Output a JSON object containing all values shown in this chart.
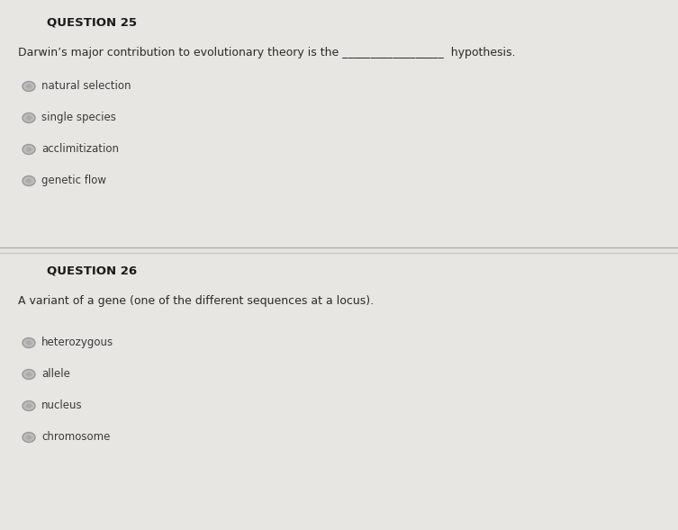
{
  "bg_color": "#e8e6e3",
  "q25_label": "QUESTION 25",
  "q25_text": "Darwin’s major contribution to evolutionary theory is the __________________  hypothesis.",
  "q25_options": [
    "natural selection",
    "single species",
    "acclimitization",
    "genetic flow"
  ],
  "q26_label": "QUESTION 26",
  "q26_text": "A variant of a gene (one of the different sequences at a locus).",
  "q26_options": [
    "heterozygous",
    "allele",
    "nucleus",
    "chromosome"
  ],
  "label_fontsize": 9.5,
  "text_fontsize": 9.0,
  "option_fontsize": 8.5,
  "label_color": "#1a1a1a",
  "text_color": "#2a2a2a",
  "option_color": "#3a3a3a",
  "circle_edge_color": "#999999",
  "circle_face_color": "#bbbbbb",
  "circle_inner_color": "#aaaaaa",
  "divider_color": "#b0aeab",
  "divider_color2": "#c8c6c3"
}
